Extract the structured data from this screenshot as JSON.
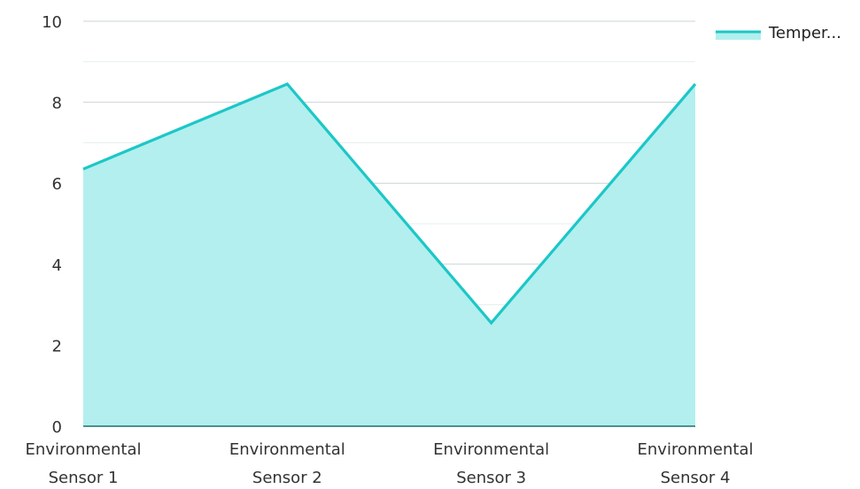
{
  "chart_data": {
    "type": "area",
    "categories": [
      [
        "Environmental",
        "Sensor 1"
      ],
      [
        "Environmental",
        "Sensor 2"
      ],
      [
        "Environmental",
        "Sensor 3"
      ],
      [
        "Environmental",
        "Sensor 4"
      ]
    ],
    "series": [
      {
        "name": "Temper...",
        "values": [
          6.35,
          8.45,
          2.55,
          8.45
        ]
      }
    ],
    "y_ticks": [
      "0",
      "2",
      "4",
      "6",
      "8",
      "10"
    ],
    "ylim": [
      0,
      10
    ],
    "grid": true,
    "minor_grid": true,
    "legend_position": "top-right",
    "colors": {
      "line": "#1cc7c7",
      "fill": "#b2efee",
      "grid_major": "#c9d4d4",
      "grid_minor": "#e6eded",
      "axis": "#1f6f6f"
    }
  }
}
